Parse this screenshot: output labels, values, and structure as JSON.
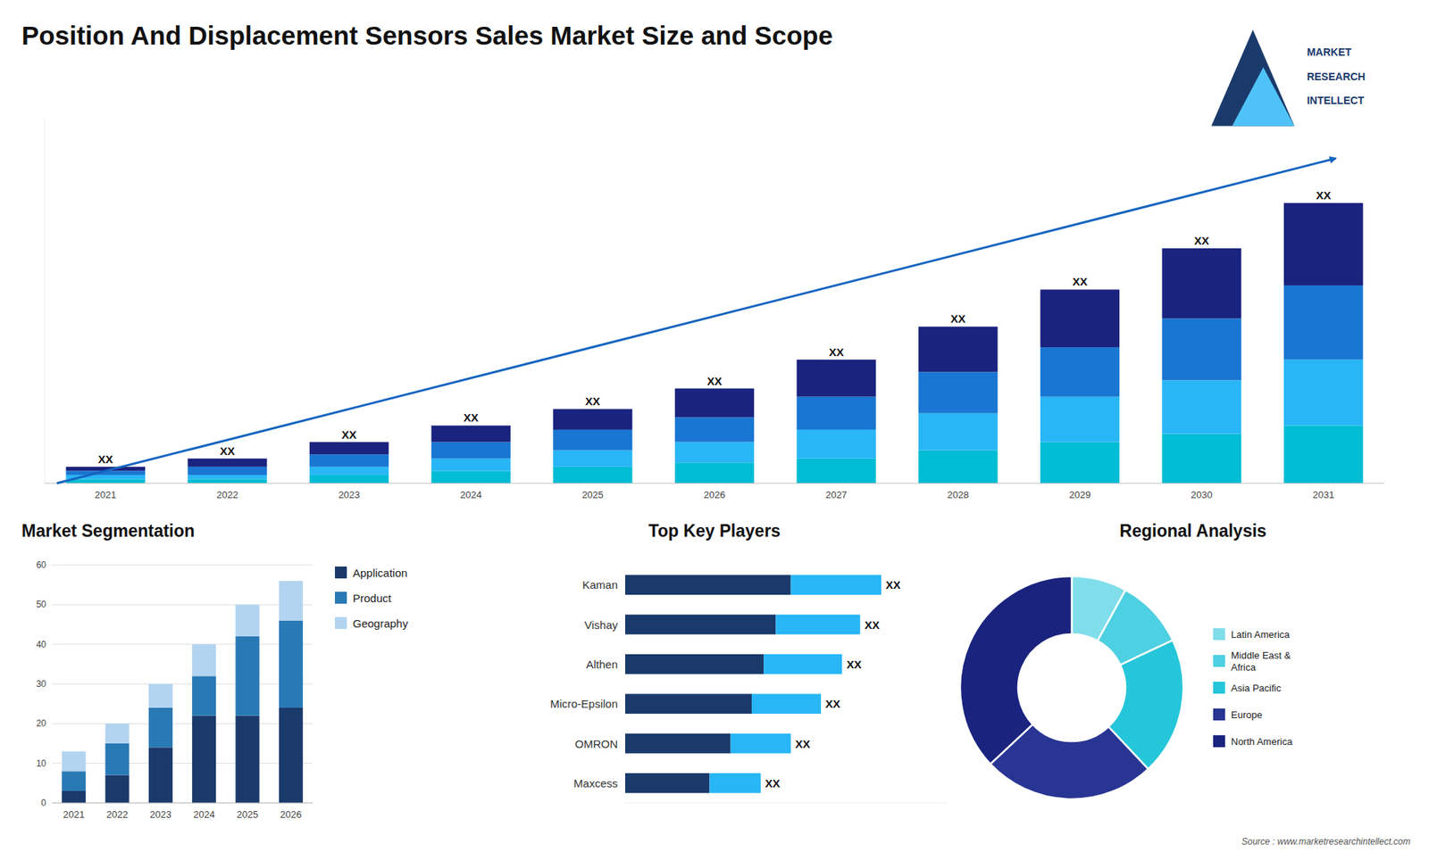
{
  "chart_data": [
    {
      "type": "bar",
      "title": "Position And Displacement Sensors Sales Market Size and Scope",
      "stacked": true,
      "categories": [
        "2021",
        "2022",
        "2023",
        "2024",
        "2025",
        "2026",
        "2027",
        "2028",
        "2029",
        "2030",
        "2031"
      ],
      "series": [
        {
          "color": "#00bcd4",
          "values": [
            1,
            1,
            2,
            3,
            4,
            5,
            6,
            8,
            10,
            12,
            14
          ]
        },
        {
          "color": "#29b6f6",
          "values": [
            1,
            1,
            2,
            3,
            4,
            5,
            7,
            9,
            11,
            13,
            16
          ]
        },
        {
          "color": "#1976d2",
          "values": [
            1,
            2,
            3,
            4,
            5,
            6,
            8,
            10,
            12,
            15,
            18
          ]
        },
        {
          "color": "#1a237e",
          "values": [
            1,
            2,
            3,
            4,
            5,
            7,
            9,
            11,
            14,
            17,
            20
          ]
        }
      ],
      "ylim": [
        0,
        88.4
      ],
      "tick_labels": "x",
      "annotations": [
        "XX",
        "XX",
        "XX",
        "XX",
        "XX",
        "XX",
        "XX",
        "XX",
        "XX",
        "XX",
        "XX"
      ]
    },
    {
      "type": "bar",
      "title": "Market Segmentation",
      "stacked": true,
      "categories": [
        "2021",
        "2022",
        "2023",
        "2024",
        "2025",
        "2026"
      ],
      "series": [
        {
          "name": "Application",
          "color": "#1a3a6b",
          "values": [
            3,
            7,
            14,
            22,
            22,
            24
          ]
        },
        {
          "name": "Product",
          "color": "#2979b5",
          "values": [
            5,
            8,
            10,
            10,
            20,
            22
          ]
        },
        {
          "name": "Geography",
          "color": "#b3d4f0",
          "values": [
            5,
            5,
            6,
            8,
            8,
            10
          ]
        }
      ],
      "ylim": [
        0,
        60
      ],
      "yticks": [
        0,
        10,
        20,
        30,
        40,
        50,
        60
      ],
      "grid": true,
      "legend": "right"
    },
    {
      "type": "bar",
      "title": "Top Key Players",
      "orientation": "horizontal",
      "stacked": true,
      "categories": [
        "Kaman",
        "Vishay",
        "Althen",
        "Micro-Epsilon",
        "OMRON",
        "Maxcess"
      ],
      "series": [
        {
          "color": "#1a3a6b",
          "values": [
            55,
            50,
            46,
            42,
            35,
            28
          ]
        },
        {
          "color": "#29b6f6",
          "values": [
            30,
            28,
            26,
            23,
            20,
            17
          ]
        }
      ],
      "xlim": [
        0,
        106.25
      ],
      "tick_labels": "y",
      "annotations": [
        "XX",
        "XX",
        "XX",
        "XX",
        "XX",
        "XX"
      ]
    },
    {
      "type": "donut",
      "title": "Regional Analysis",
      "categories": [
        "Latin America",
        "Middle East &\nAfrica",
        "Asia Pacific",
        "Europe",
        "North America"
      ],
      "values": [
        8,
        10,
        20,
        25,
        37
      ],
      "colors": [
        "#80deea",
        "#4dd0e1",
        "#26c6da",
        "#283593",
        "#1a237e"
      ],
      "legend": "right"
    }
  ],
  "annotations": [
    "MARKET",
    "RESEARCH",
    "INTELLECT",
    "Source : www.marketresearchintellect.com"
  ]
}
